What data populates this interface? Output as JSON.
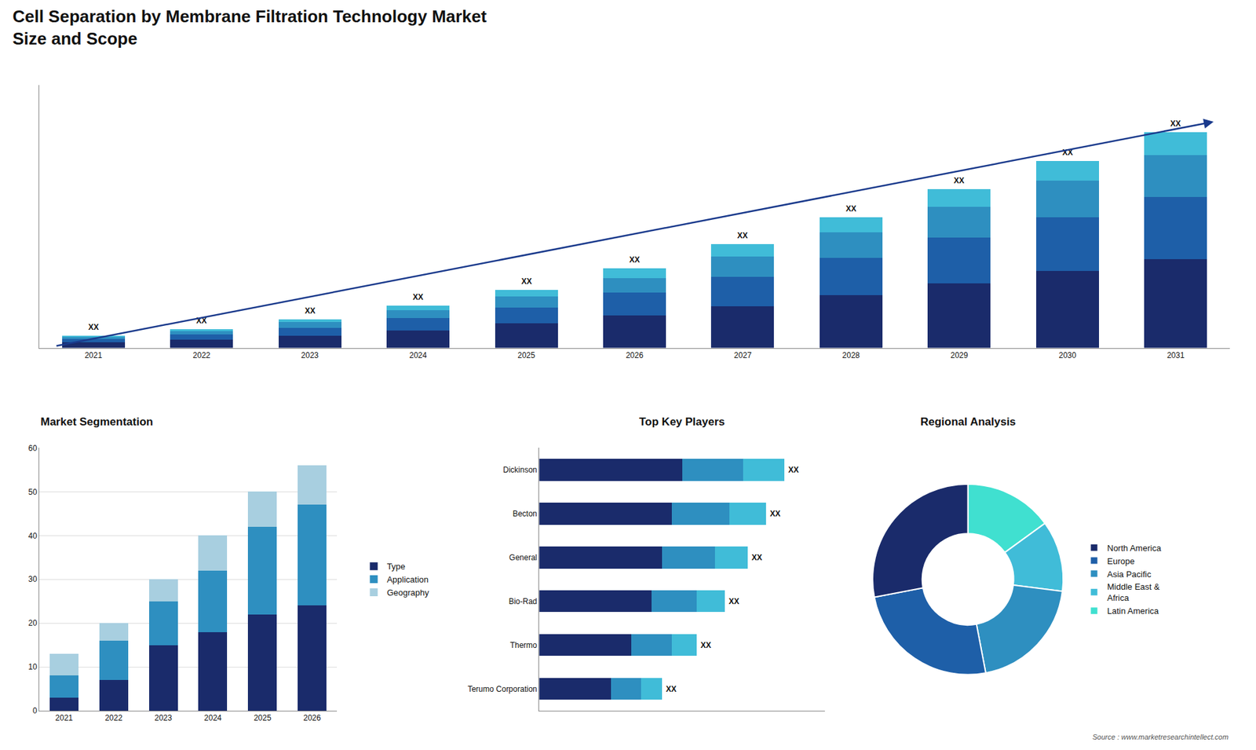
{
  "chart_data": [
    {
      "type": "bar",
      "stacked": true,
      "title": "Cell Separation by Membrane Filtration Technology Market\nSize and Scope",
      "categories": [
        "2021",
        "2022",
        "2023",
        "2024",
        "2025",
        "2026",
        "2027",
        "2028",
        "2029",
        "2030",
        "2031"
      ],
      "series": [
        {
          "color": "#1a2b6b",
          "values": [
            2.0,
            3.0,
            4.5,
            6.5,
            9.0,
            12.0,
            15.5,
            19.5,
            24.0,
            28.5,
            33.0
          ]
        },
        {
          "color": "#1e5fa8",
          "values": [
            1.2,
            2.0,
            3.0,
            4.5,
            6.0,
            8.5,
            11.0,
            14.0,
            17.0,
            20.0,
            23.0
          ]
        },
        {
          "color": "#2e8fc0",
          "values": [
            0.8,
            1.2,
            2.0,
            3.0,
            4.0,
            5.5,
            7.5,
            9.5,
            11.5,
            13.5,
            15.5
          ]
        },
        {
          "color": "#40bcd8",
          "values": [
            0.5,
            0.8,
            1.2,
            1.8,
            2.5,
            3.5,
            4.5,
            5.5,
            6.5,
            7.5,
            8.5
          ]
        }
      ],
      "total_labels": [
        "XX",
        "XX",
        "XX",
        "XX",
        "XX",
        "XX",
        "XX",
        "XX",
        "XX",
        "XX",
        "XX"
      ],
      "ylim": [
        0,
        97.6
      ],
      "tick_labels": "x",
      "grid": false,
      "annotations": [
        "Source : www.marketresearchintellect.com"
      ]
    },
    {
      "type": "bar",
      "stacked": true,
      "title": "Market Segmentation",
      "categories": [
        "2021",
        "2022",
        "2023",
        "2024",
        "2025",
        "2026"
      ],
      "series": [
        {
          "name": "Type",
          "color": "#1a2b6b",
          "values": [
            3,
            7,
            15,
            18,
            22,
            24
          ]
        },
        {
          "name": "Application",
          "color": "#2e8fc0",
          "values": [
            5,
            9,
            10,
            14,
            20,
            23
          ]
        },
        {
          "name": "Geography",
          "color": "#a8cfe0",
          "values": [
            5,
            4,
            5,
            8,
            8,
            9
          ]
        }
      ],
      "ylim": [
        0,
        60
      ],
      "yticks": [
        0,
        10,
        20,
        30,
        40,
        50,
        60
      ],
      "grid": true,
      "legend": "right"
    },
    {
      "type": "bar",
      "stacked": true,
      "orientation": "horizontal",
      "title": "Top Key Players",
      "categories": [
        "Dickinson",
        "Becton",
        "General",
        "Bio-Rad",
        "Thermo",
        "Terumo Corporation"
      ],
      "series": [
        {
          "color": "#1a2b6b",
          "values": [
            7.0,
            6.5,
            6.0,
            5.5,
            4.5,
            3.5
          ]
        },
        {
          "color": "#2e8fc0",
          "values": [
            3.0,
            2.8,
            2.6,
            2.2,
            2.0,
            1.5
          ]
        },
        {
          "color": "#40bcd8",
          "values": [
            2.0,
            1.8,
            1.6,
            1.4,
            1.2,
            1.0
          ]
        }
      ],
      "total_labels": [
        "XX",
        "XX",
        "XX",
        "XX",
        "XX",
        "XX"
      ],
      "xlim": [
        0,
        14
      ],
      "tick_labels": "y",
      "grid": false
    },
    {
      "type": "pie",
      "title": "Regional Analysis",
      "categories": [
        "Latin America",
        "Middle East &\nAfrica",
        "Asia Pacific",
        "Europe",
        "North America"
      ],
      "values": [
        15,
        12,
        20,
        25,
        28
      ],
      "colors": [
        "#40e0d0",
        "#40bcd8",
        "#2e8fc0",
        "#1e5fa8",
        "#1a2b6b"
      ],
      "legend": "right"
    }
  ]
}
